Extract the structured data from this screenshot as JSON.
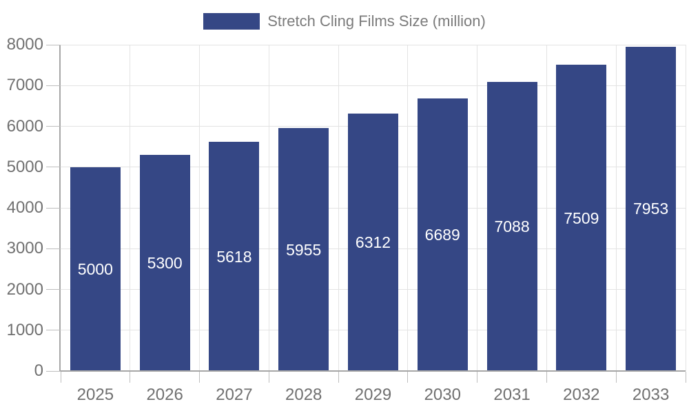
{
  "chart_data": {
    "type": "bar",
    "title": "Stretch Cling Films Size (million)",
    "categories": [
      "2025",
      "2026",
      "2027",
      "2028",
      "2029",
      "2030",
      "2031",
      "2032",
      "2033"
    ],
    "series": [
      {
        "name": "Stretch Cling Films Size (million)",
        "values": [
          5000,
          5300,
          5618,
          5955,
          6312,
          6689,
          7088,
          7509,
          7953
        ]
      }
    ],
    "ylim": [
      0,
      8000
    ],
    "ytick_step": 1000,
    "ytick_labels": [
      "0",
      "1000",
      "2000",
      "3000",
      "4000",
      "5000",
      "6000",
      "7000",
      "8000"
    ],
    "grid": true,
    "legend_position": "top",
    "value_labels_position": "inside-center"
  },
  "colors": {
    "bar": "#354785",
    "bar_label": "#ffffff",
    "legend_text": "#7b7b7b",
    "axis_text": "#707070",
    "axis_line": "#a6a6a6",
    "gridline": "#e3e3e3",
    "tick": "#bdbdbd",
    "background": "#ffffff"
  }
}
